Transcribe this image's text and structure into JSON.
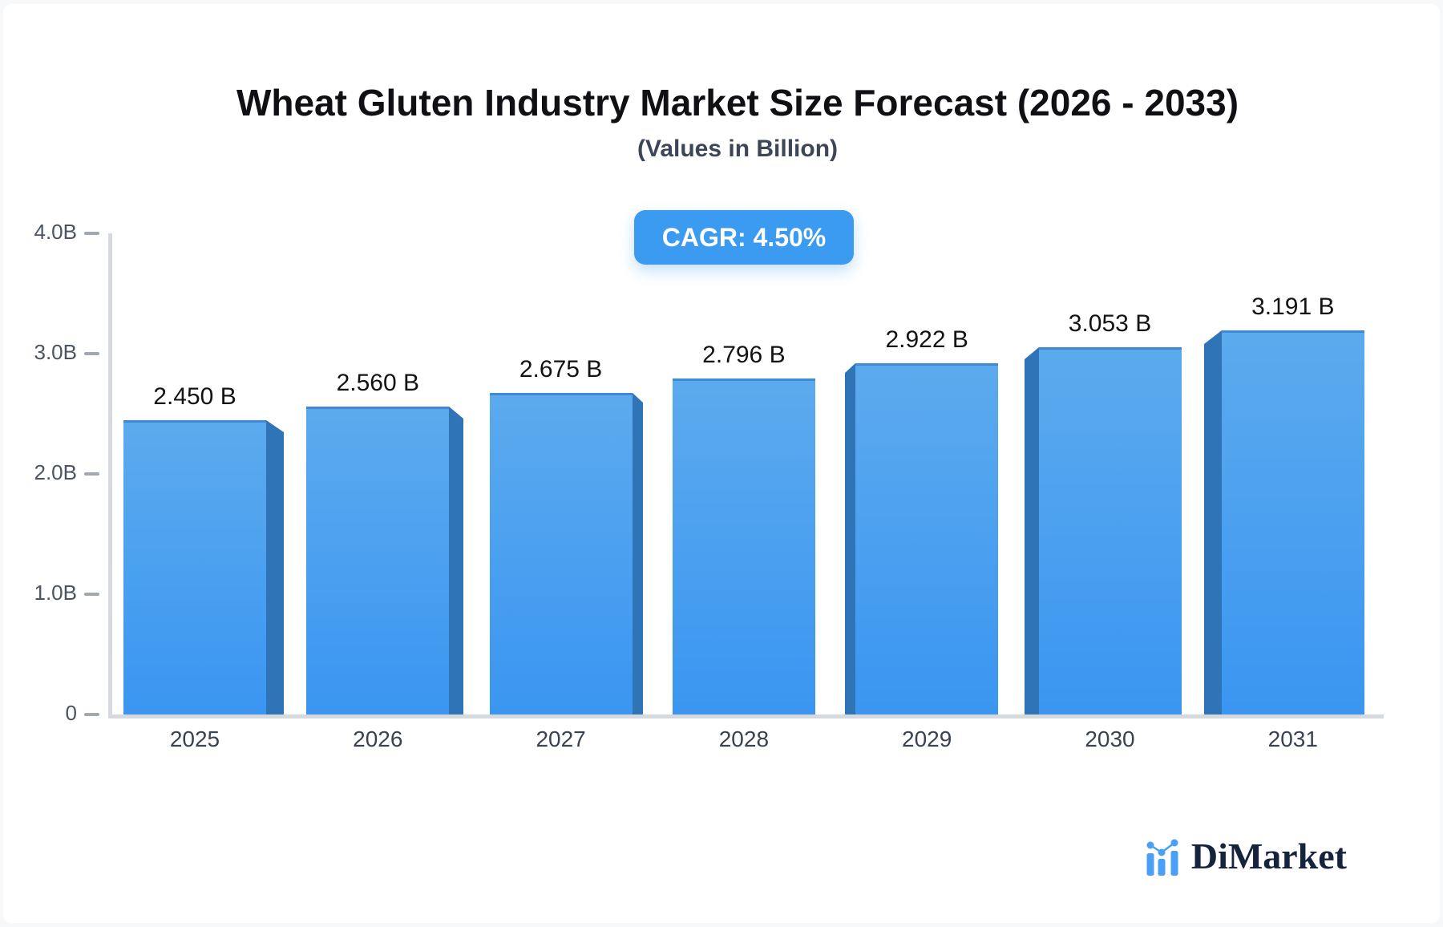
{
  "title": "Wheat Gluten Industry Market Size Forecast (2026 - 2033)",
  "subtitle": "(Values in Billion)",
  "badge": {
    "label": "CAGR: 4.50%",
    "color": "#3b9bf1"
  },
  "chart_data": {
    "type": "bar",
    "categories": [
      "2025",
      "2026",
      "2027",
      "2028",
      "2029",
      "2030",
      "2031"
    ],
    "values": [
      2.45,
      2.56,
      2.675,
      2.796,
      2.922,
      3.053,
      3.191
    ],
    "bar_labels": [
      "2.450 B",
      "2.560 B",
      "2.675 B",
      "2.796 B",
      "2.922 B",
      "3.053 B",
      "3.191 B"
    ],
    "ytick_labels": [
      "0",
      "1.0B",
      "2.0B",
      "3.0B",
      "4.0B"
    ],
    "ytick_values": [
      0,
      1,
      2,
      3,
      4
    ],
    "ylim": [
      0,
      4
    ],
    "xlabel": "",
    "ylabel": "",
    "grid": false,
    "legend": false,
    "title": "Wheat Gluten Industry Market Size Forecast (2026 - 2033)",
    "bar_color_top": "#5caaee",
    "bar_color_bottom": "#3a96f1",
    "bar_top_edge_color": "#4189d4",
    "bar_side_color": "#2e74b7",
    "axis_color": "#d6dade",
    "tick_color": "#a1a8b2"
  },
  "logo": {
    "name": "DiMarket",
    "icon": "bar-chart-trend-icon",
    "icon_color": "#4aa0f6",
    "text_color": "#16233d"
  }
}
